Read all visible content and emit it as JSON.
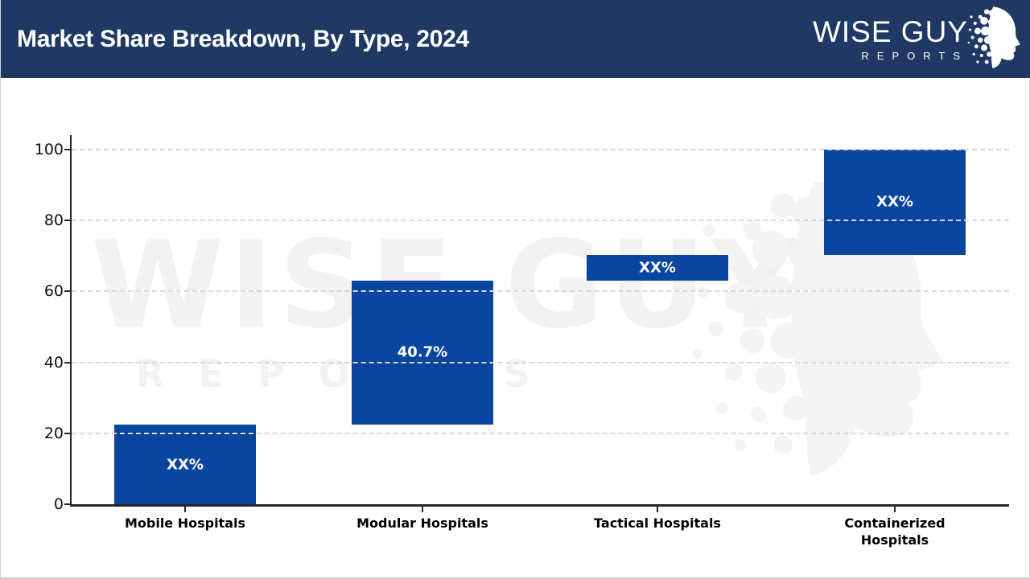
{
  "header": {
    "title": "Market Share Breakdown, By Type, 2024",
    "logo": {
      "brand": "WISE GUY",
      "sub": "REPORTS"
    }
  },
  "watermark": {
    "brand": "WISE GUY",
    "sub": "REPORTS"
  },
  "colors": {
    "header_bg": "#1f3864",
    "bar": "#0a46a0",
    "bar_label": "#ffffff",
    "grid": "#d9d9d9",
    "axis": "#262626",
    "watermark": "#f2f2f2"
  },
  "chart_data": {
    "type": "bar",
    "subtype": "waterfall",
    "title": "Market Share Breakdown, By Type, 2024",
    "categories": [
      "Mobile Hospitals",
      "Modular Hospitals",
      "Tactical Hospitals",
      "Containerized Hospitals"
    ],
    "series": [
      {
        "category": "Mobile Hospitals",
        "start": 0,
        "end": 22.4,
        "label": "XX%"
      },
      {
        "category": "Modular Hospitals",
        "start": 22.4,
        "end": 63.1,
        "label": "40.7%",
        "value": 40.7
      },
      {
        "category": "Tactical Hospitals",
        "start": 63.1,
        "end": 70.4,
        "label": "XX%"
      },
      {
        "category": "Containerized Hospitals",
        "start": 70.4,
        "end": 100,
        "label": "XX%"
      }
    ],
    "xlabel": "",
    "ylabel": "",
    "ylim": [
      0,
      104
    ],
    "yticks": [
      0,
      20,
      40,
      60,
      80,
      100
    ],
    "grid": "horizontal-dashed",
    "legend": "none"
  }
}
